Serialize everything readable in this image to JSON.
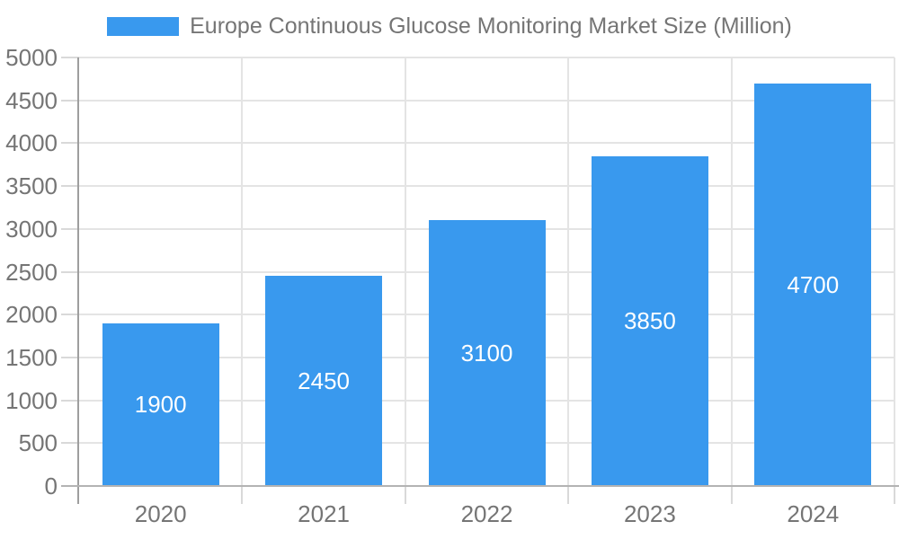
{
  "legend": {
    "label": "Europe Continuous Glucose Monitoring Market Size (Million)"
  },
  "colors": {
    "bar": "#3999ee",
    "bar_label": "#ffffff",
    "axis_label": "#757575",
    "legend_text": "#757575",
    "grid": "#e4e4e4",
    "y_axis_line": "#9e9e9e",
    "x_axis_line": "#b3b3b3",
    "tick": "#d9d9d9"
  },
  "chart_data": {
    "type": "bar",
    "title": "Europe Continuous Glucose Monitoring Market Size (Million)",
    "categories": [
      "2020",
      "2021",
      "2022",
      "2023",
      "2024"
    ],
    "values": [
      1900,
      2450,
      3100,
      3850,
      4700
    ],
    "xlabel": "",
    "ylabel": "",
    "ylim": [
      0,
      5000
    ],
    "ytick_step": 500,
    "ytick_labels": [
      "0",
      "500",
      "1000",
      "1500",
      "2000",
      "2500",
      "3000",
      "3500",
      "4000",
      "4500",
      "5000"
    ],
    "grid": true,
    "legend_position": "top-center",
    "value_label_position": "inside-center"
  }
}
